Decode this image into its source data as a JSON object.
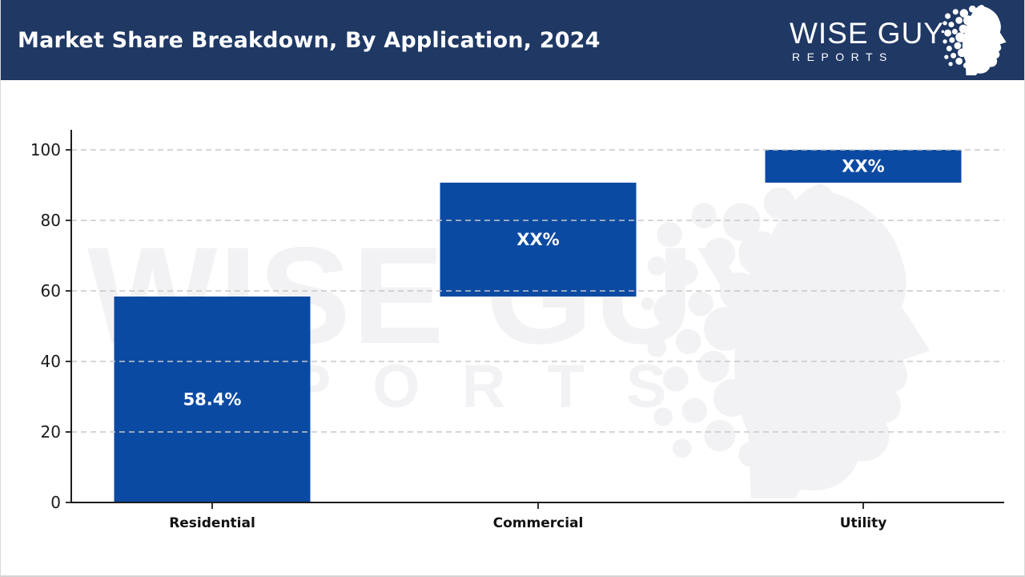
{
  "page": {
    "background": "#ffffff",
    "border_color": "#d9d9d9"
  },
  "header": {
    "title": "Market Share Breakdown, By Application, 2024",
    "background": "#1f3864",
    "brand": {
      "wordmark": "WISE GUY",
      "wordmark_sub": "REPORTS"
    }
  },
  "watermark": {
    "wordmark": "WISE GUY",
    "wordmark_sub": "REPORTS"
  },
  "chart_data": {
    "type": "bar",
    "subtype": "waterfall",
    "title": "Market Share Breakdown, By Application, 2024",
    "categories": [
      "Residential",
      "Commercial",
      "Utility"
    ],
    "segments": [
      {
        "category": "Residential",
        "start": 0,
        "end": 58.4,
        "label": "58.4%"
      },
      {
        "category": "Commercial",
        "start": 58.4,
        "end": 90.7,
        "label": "XX%"
      },
      {
        "category": "Utility",
        "start": 90.7,
        "end": 100,
        "label": "XX%"
      }
    ],
    "ylim": [
      0,
      106
    ],
    "yticks": [
      0,
      20,
      40,
      60,
      80,
      100
    ],
    "xlabel": "",
    "ylabel": "",
    "grid": {
      "axis": "y",
      "style": "dashed",
      "color": "#c8c8c8",
      "drawn_above_bars": true
    },
    "legend": "none",
    "bar_color": "#0b4aa2",
    "bar_label_color": "#ffffff",
    "axis_color": "#1c1c1c",
    "tick_label_color": "#1a1a1a"
  }
}
